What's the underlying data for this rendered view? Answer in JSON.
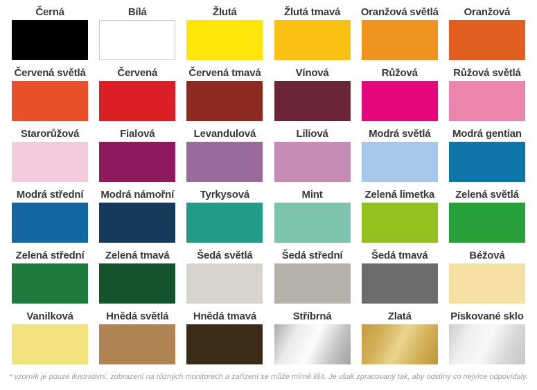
{
  "palette": {
    "rows": 6,
    "cols": 6,
    "swatches": [
      {
        "label": "Černá",
        "color": "#000000"
      },
      {
        "label": "Bílá",
        "color": "#FFFFFF",
        "border": "#C8C8C8"
      },
      {
        "label": "Žlutá",
        "color": "#FFE60A"
      },
      {
        "label": "Žlutá tmavá",
        "color": "#F9C116"
      },
      {
        "label": "Oranžová světlá",
        "color": "#F0921E"
      },
      {
        "label": "Oranžová",
        "color": "#E05E20"
      },
      {
        "label": "Červená světlá",
        "color": "#E8502C"
      },
      {
        "label": "Červená",
        "color": "#DA2026"
      },
      {
        "label": "Červená tmavá",
        "color": "#8C2A20"
      },
      {
        "label": "Vínová",
        "color": "#6A2638"
      },
      {
        "label": "Růžová",
        "color": "#E6077E"
      },
      {
        "label": "Růžová světlá",
        "color": "#EC86AF"
      },
      {
        "label": "Starorůžová",
        "color": "#F4CBDE"
      },
      {
        "label": "Fialová",
        "color": "#8F195D"
      },
      {
        "label": "Levandulová",
        "color": "#9B6A9D"
      },
      {
        "label": "Liliová",
        "color": "#C78CB5"
      },
      {
        "label": "Modrá světlá",
        "color": "#A5C7E9"
      },
      {
        "label": "Modrá gentian",
        "color": "#0F76A9"
      },
      {
        "label": "Modrá střední",
        "color": "#15679F"
      },
      {
        "label": "Modrá námořní",
        "color": "#153A5B"
      },
      {
        "label": "Tyrkysová",
        "color": "#219C86"
      },
      {
        "label": "Mint",
        "color": "#7DC3AD"
      },
      {
        "label": "Zelená limetka",
        "color": "#95C11F"
      },
      {
        "label": "Zelená světlá",
        "color": "#28A03C"
      },
      {
        "label": "Zelená střední",
        "color": "#1F7A3D"
      },
      {
        "label": "Zelená tmavá",
        "color": "#14532B"
      },
      {
        "label": "Šedá světlá",
        "color": "#D7D4CD"
      },
      {
        "label": "Šedá střední",
        "color": "#B4B2AA"
      },
      {
        "label": "Šedá tmavá",
        "color": "#6C6C6A"
      },
      {
        "label": "Béžová",
        "color": "#F6E0A4"
      },
      {
        "label": "Vanilková",
        "color": "#F3E37C"
      },
      {
        "label": "Hnědá světlá",
        "color": "#AF8354"
      },
      {
        "label": "Hnědá tmavá",
        "color": "#3B2C18"
      },
      {
        "label": "Stříbrná",
        "gradient": {
          "angle": 115,
          "stops": [
            "#A9AAAC",
            "#E9EAEB",
            "#FDFDFD",
            "#C6C7C9",
            "#9EA0A2"
          ]
        }
      },
      {
        "label": "Zlatá",
        "gradient": {
          "angle": 115,
          "stops": [
            "#C59C41",
            "#D2B058",
            "#EAD48F",
            "#D3B056",
            "#BE9538"
          ]
        }
      },
      {
        "label": "Pískované sklo",
        "gradient": {
          "angle": 115,
          "stops": [
            "#C9CBCC",
            "#EFF0F1",
            "#F8F8F9",
            "#D6D8D9",
            "#C4C6C7"
          ]
        }
      }
    ]
  },
  "footnote": "* vzorník je pouze ilustrativní, zobrazení na různých monitorech a zařízení se může mírně lišit. Je však zpracovaný tak, aby odstíny co nejvíce odpovídaly."
}
